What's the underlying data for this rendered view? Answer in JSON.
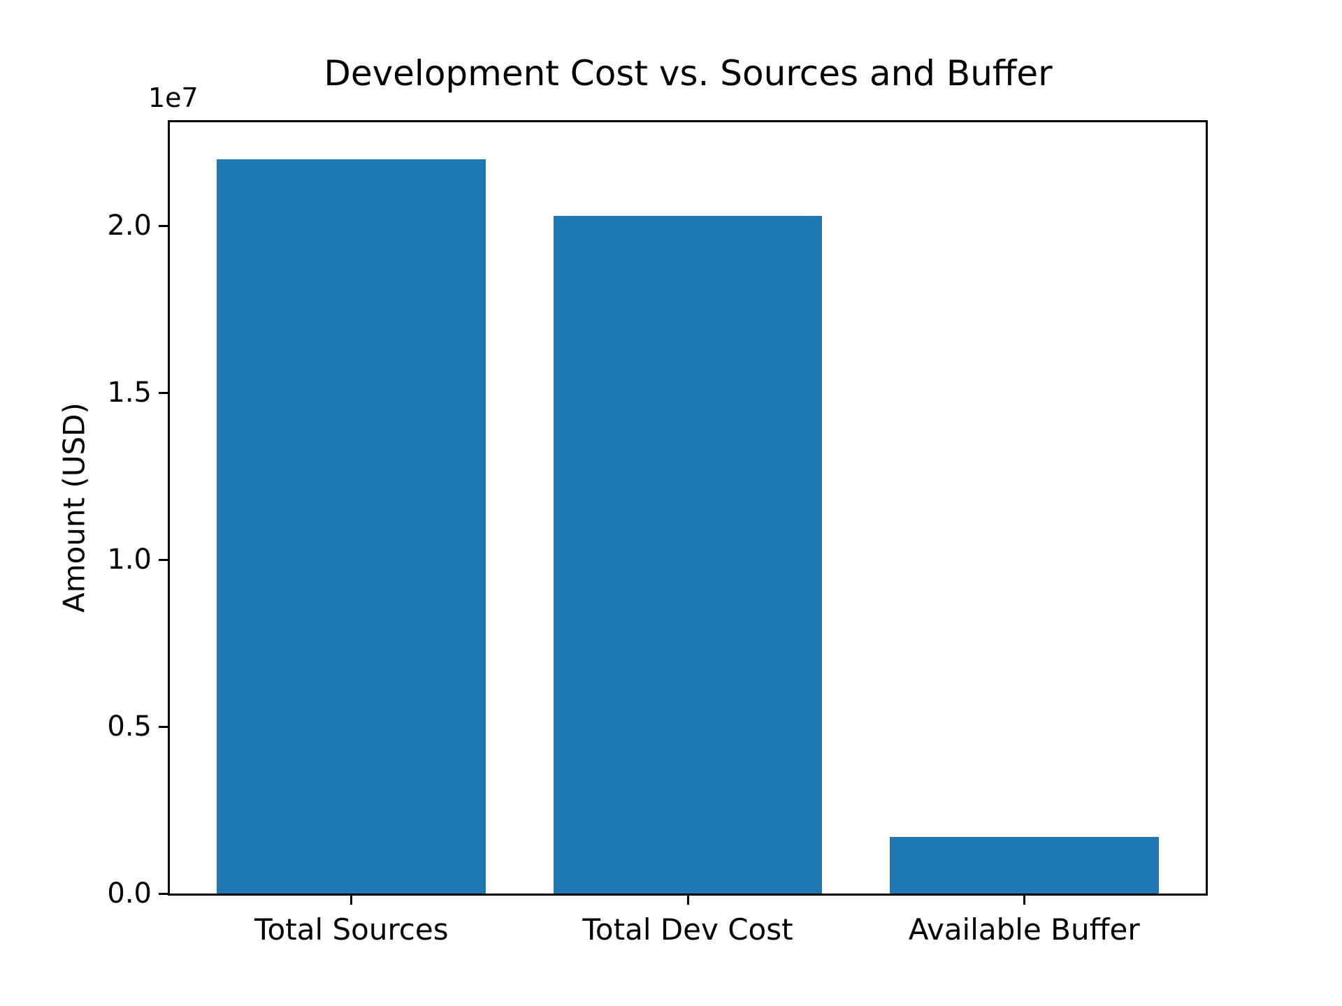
{
  "chart_data": {
    "type": "bar",
    "title": "Development Cost vs. Sources and Buffer",
    "xlabel": "",
    "ylabel": "Amount (USD)",
    "offset_text": "1e7",
    "categories": [
      "Total Sources",
      "Total Dev Cost",
      "Available Buffer"
    ],
    "values": [
      22000000,
      20300000,
      1700000
    ],
    "bar_color": "#1f77b4",
    "bar_width_fraction": 0.8,
    "ylim": [
      0,
      23100000
    ],
    "yticks": [
      0,
      5000000,
      10000000,
      15000000,
      20000000
    ],
    "ytick_labels": [
      "0.0",
      "0.5",
      "1.0",
      "1.5",
      "2.0"
    ],
    "grid": false,
    "legend": "none"
  }
}
